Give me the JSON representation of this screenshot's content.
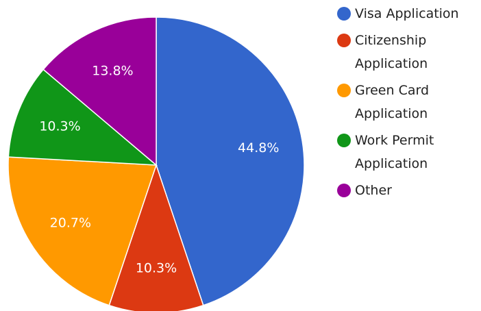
{
  "chart_data": {
    "type": "pie",
    "categories": [
      "Visa Application",
      "Citizenship Application",
      "Green Card Application",
      "Work Permit Application",
      "Other"
    ],
    "values": [
      44.8,
      10.3,
      20.7,
      10.3,
      13.8
    ],
    "value_labels": [
      "44.8%",
      "10.3%",
      "20.7%",
      "10.3%",
      "13.8%"
    ],
    "colors": [
      "#3366cc",
      "#dc3912",
      "#ff9900",
      "#109618",
      "#990099"
    ],
    "legend": "right"
  }
}
